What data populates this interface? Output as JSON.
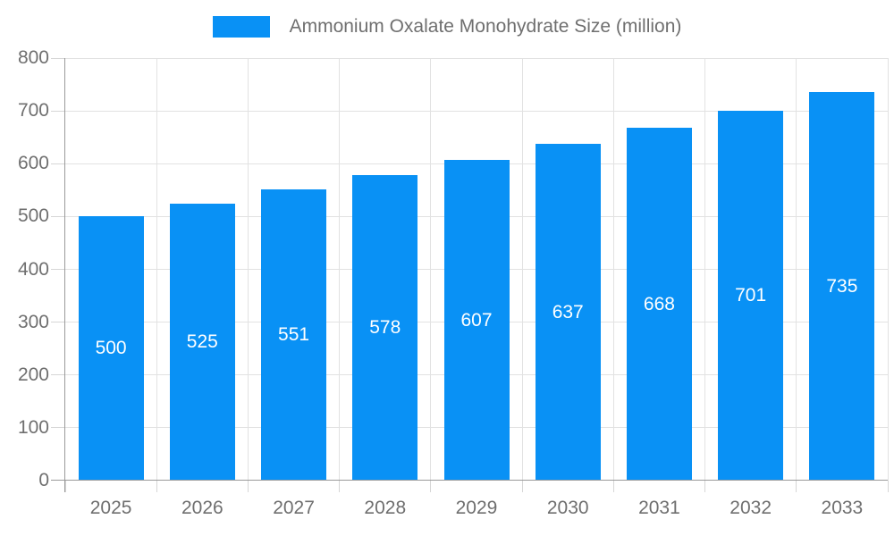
{
  "legend": {
    "label": "Ammonium Oxalate Monohydrate Size (million)"
  },
  "chart_data": {
    "type": "bar",
    "title": "Ammonium Oxalate Monohydrate Size (million)",
    "categories": [
      "2025",
      "2026",
      "2027",
      "2028",
      "2029",
      "2030",
      "2031",
      "2032",
      "2033"
    ],
    "values": [
      500,
      525,
      551,
      578,
      607,
      637,
      668,
      701,
      735
    ],
    "xlabel": "",
    "ylabel": "",
    "ylim": [
      0,
      800
    ],
    "ytick_step": 100,
    "ytick_labels": [
      "0",
      "100",
      "200",
      "300",
      "400",
      "500",
      "600",
      "700",
      "800"
    ],
    "grid": true,
    "legend_position": "top",
    "value_labels_inside_bars": true,
    "colors": {
      "bar": "#0991f5",
      "value_label": "#ffffff",
      "axis": "#9a9a9a",
      "gridline": "#e2e2e2",
      "tick": "#d6d6d6",
      "tick_label": "#6f6f6f"
    }
  }
}
